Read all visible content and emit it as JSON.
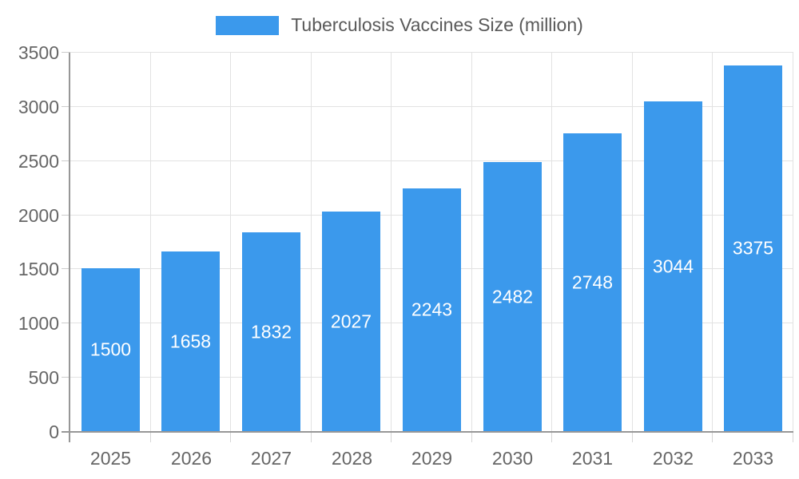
{
  "legend": {
    "label": "Tuberculosis Vaccines Size (million)",
    "swatch_color": "#3b99ec"
  },
  "chart_data": {
    "type": "bar",
    "title": "Tuberculosis Vaccines Size (million)",
    "categories": [
      "2025",
      "2026",
      "2027",
      "2028",
      "2029",
      "2030",
      "2031",
      "2032",
      "2033"
    ],
    "values": [
      1500,
      1658,
      1832,
      2027,
      2243,
      2482,
      2748,
      3044,
      3375
    ],
    "xlabel": "",
    "ylabel": "",
    "ylim": [
      0,
      3500
    ],
    "yticks": [
      0,
      500,
      1000,
      1500,
      2000,
      2500,
      3000,
      3500
    ],
    "grid": true,
    "legend_position": "top",
    "bar_color": "#3b99ec",
    "bar_label_color": "#ffffff",
    "grid_color": "#e2e2e2",
    "axis_color": "#979797",
    "tick_label_color": "#666666"
  }
}
